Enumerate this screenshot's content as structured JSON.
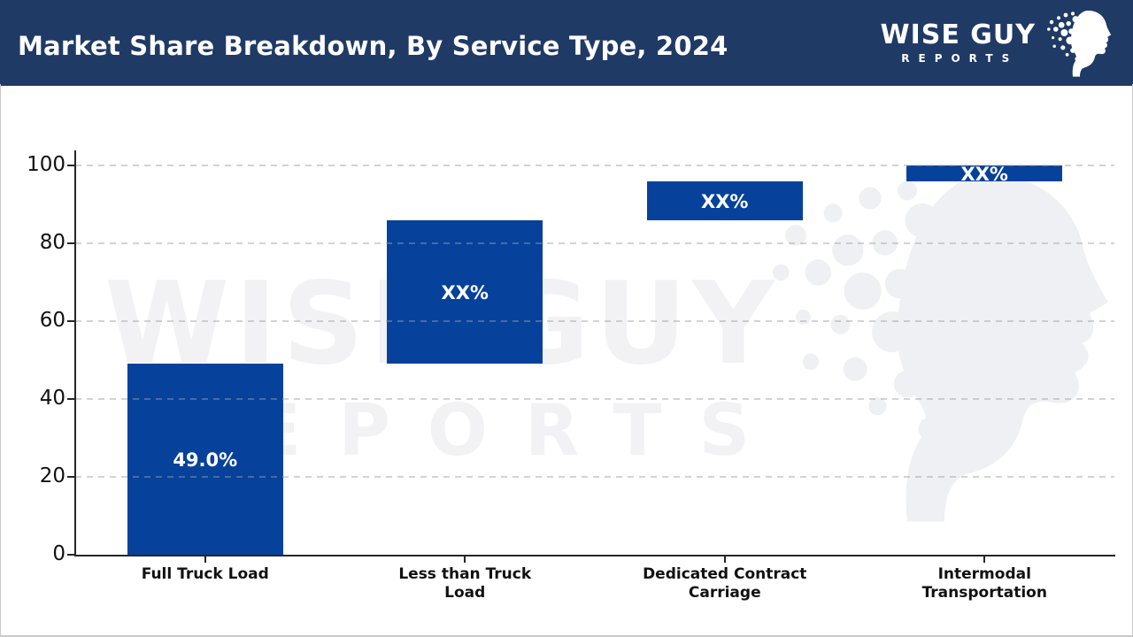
{
  "header": {
    "title": "Market Share Breakdown, By Service Type, 2024",
    "brand": {
      "line1": "WISE GUY",
      "line2": "REPORTS"
    }
  },
  "watermark": {
    "line1": "WISE GUY",
    "line2": "REPORTS"
  },
  "chart_data": {
    "type": "bar",
    "subtype": "waterfall",
    "title": "Market Share Breakdown, By Service Type, 2024",
    "categories": [
      "Full Truck Load",
      "Less than Truck Load",
      "Dedicated Contract Carriage",
      "Intermodal Transportation"
    ],
    "category_label_lines": [
      [
        "Full Truck Load"
      ],
      [
        "Less than Truck",
        "Load"
      ],
      [
        "Dedicated Contract",
        "Carriage"
      ],
      [
        "Intermodal",
        "Transportation"
      ]
    ],
    "segments": [
      {
        "start": 0,
        "end": 49,
        "label": "49.0%"
      },
      {
        "start": 49,
        "end": 86,
        "label": "XX%"
      },
      {
        "start": 86,
        "end": 96,
        "label": "XX%"
      },
      {
        "start": 96,
        "end": 100,
        "label": "XX%"
      }
    ],
    "values": [
      49,
      37,
      10,
      4
    ],
    "xlabel": "",
    "ylabel": "",
    "yticks": [
      0,
      20,
      40,
      60,
      80,
      100
    ],
    "ylim": [
      0,
      104
    ],
    "grid": "horizontal-dashed",
    "legend": "none",
    "bar_color": "#06429b",
    "bar_label_color": "#ffffff"
  },
  "colors": {
    "header_bg": "#203a66",
    "bar": "#06429b",
    "axis": "#262626",
    "grid": "#d9d9d9",
    "watermark": "#f2f2f5",
    "frame_border": "#c9c9c9"
  }
}
